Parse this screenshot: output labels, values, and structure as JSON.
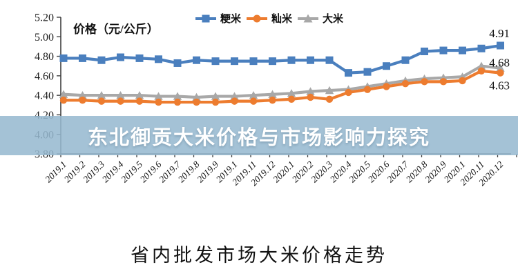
{
  "chart_data": {
    "type": "line",
    "ylabel": "价格（元/公斤）",
    "categories": [
      "2019.1",
      "2019.2",
      "2019.3",
      "2019.4",
      "2019.5",
      "2019.6",
      "2019.7",
      "2019.8",
      "2019.9",
      "2019.1",
      "2019.11",
      "2019.12",
      "2020.1",
      "2020.2",
      "2020.3",
      "2020.4",
      "2020.5",
      "2020.6",
      "2020.7",
      "2020.8",
      "2020.9",
      "2020.1",
      "2020.11",
      "2020.12"
    ],
    "y_ticks": [
      "5.20",
      "5.00",
      "4.80",
      "4.60",
      "4.40",
      "4.20",
      "4.00",
      "3.80"
    ],
    "ylim": [
      3.8,
      5.2
    ],
    "grid": false,
    "legend_position": "top",
    "series": [
      {
        "name": "大米",
        "marker": "triangle",
        "color": "#a8a8a8",
        "values": [
          4.41,
          4.4,
          4.4,
          4.4,
          4.4,
          4.39,
          4.39,
          4.38,
          4.39,
          4.39,
          4.4,
          4.41,
          4.42,
          4.44,
          4.45,
          4.46,
          4.49,
          4.52,
          4.55,
          4.57,
          4.58,
          4.59,
          4.7,
          4.68
        ],
        "end_label": "4.68"
      },
      {
        "name": "籼米",
        "marker": "circle",
        "color": "#ed7c2f",
        "values": [
          4.35,
          4.35,
          4.34,
          4.34,
          4.34,
          4.33,
          4.33,
          4.33,
          4.33,
          4.34,
          4.34,
          4.35,
          4.36,
          4.38,
          4.36,
          4.43,
          4.46,
          4.49,
          4.52,
          4.54,
          4.54,
          4.55,
          4.65,
          4.63
        ],
        "end_label": "4.63"
      },
      {
        "name": "粳米",
        "marker": "square",
        "color": "#4a7fbe",
        "values": [
          4.78,
          4.78,
          4.76,
          4.79,
          4.78,
          4.77,
          4.73,
          4.76,
          4.75,
          4.75,
          4.75,
          4.75,
          4.76,
          4.76,
          4.76,
          4.63,
          4.64,
          4.7,
          4.76,
          4.85,
          4.86,
          4.86,
          4.88,
          4.91
        ],
        "end_label": "4.91"
      }
    ],
    "legend_order": [
      "粳米",
      "籼米",
      "大米"
    ]
  },
  "overlay": {
    "title": "东北御贡大米价格与市场影响力探究",
    "background": "#96b9d0"
  },
  "caption": "省内批发市场大米价格走势",
  "axis_color": "#3f3f3f"
}
